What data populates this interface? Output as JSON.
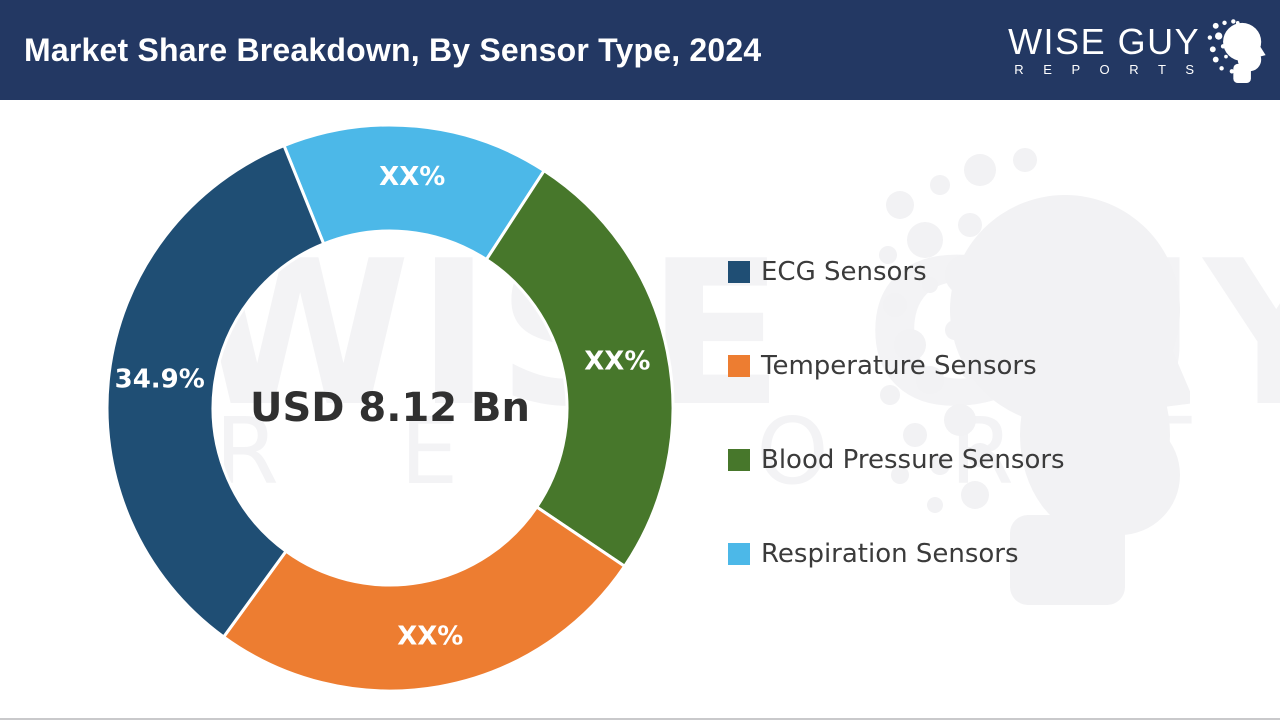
{
  "header": {
    "title": "Market Share Breakdown, By Sensor Type, 2024",
    "bg_color": "#233863",
    "logo": {
      "line1": "WISE GUY",
      "line2": "R E P O R T S"
    }
  },
  "chart_data": {
    "type": "donut",
    "title": "Market Share Breakdown, By Sensor Type, 2024",
    "center_label": "USD 8.12 Bn",
    "start_angle_deg": -22,
    "segments": [
      {
        "name": "Respiration Sensors",
        "value_label": "XX%",
        "angle_deg": 55,
        "color": "#4CB8E8"
      },
      {
        "name": "Blood Pressure Sensors",
        "value_label": "XX%",
        "angle_deg": 91,
        "color": "#47772B"
      },
      {
        "name": "Temperature Sensors",
        "value_label": "XX%",
        "angle_deg": 92,
        "color": "#ED7D31"
      },
      {
        "name": "ECG Sensors",
        "value_label": "34.9%",
        "angle_deg": 122,
        "color": "#1F4E74"
      }
    ],
    "legend": [
      {
        "label": "ECG Sensors",
        "color": "#1F4E74"
      },
      {
        "label": "Temperature Sensors",
        "color": "#ED7D31"
      },
      {
        "label": "Blood Pressure Sensors",
        "color": "#47772B"
      },
      {
        "label": "Respiration Sensors",
        "color": "#4CB8E8"
      }
    ],
    "legend_position": "right"
  },
  "watermark": {
    "line1": "WISE GUY",
    "line2": "R E P O R T S"
  }
}
